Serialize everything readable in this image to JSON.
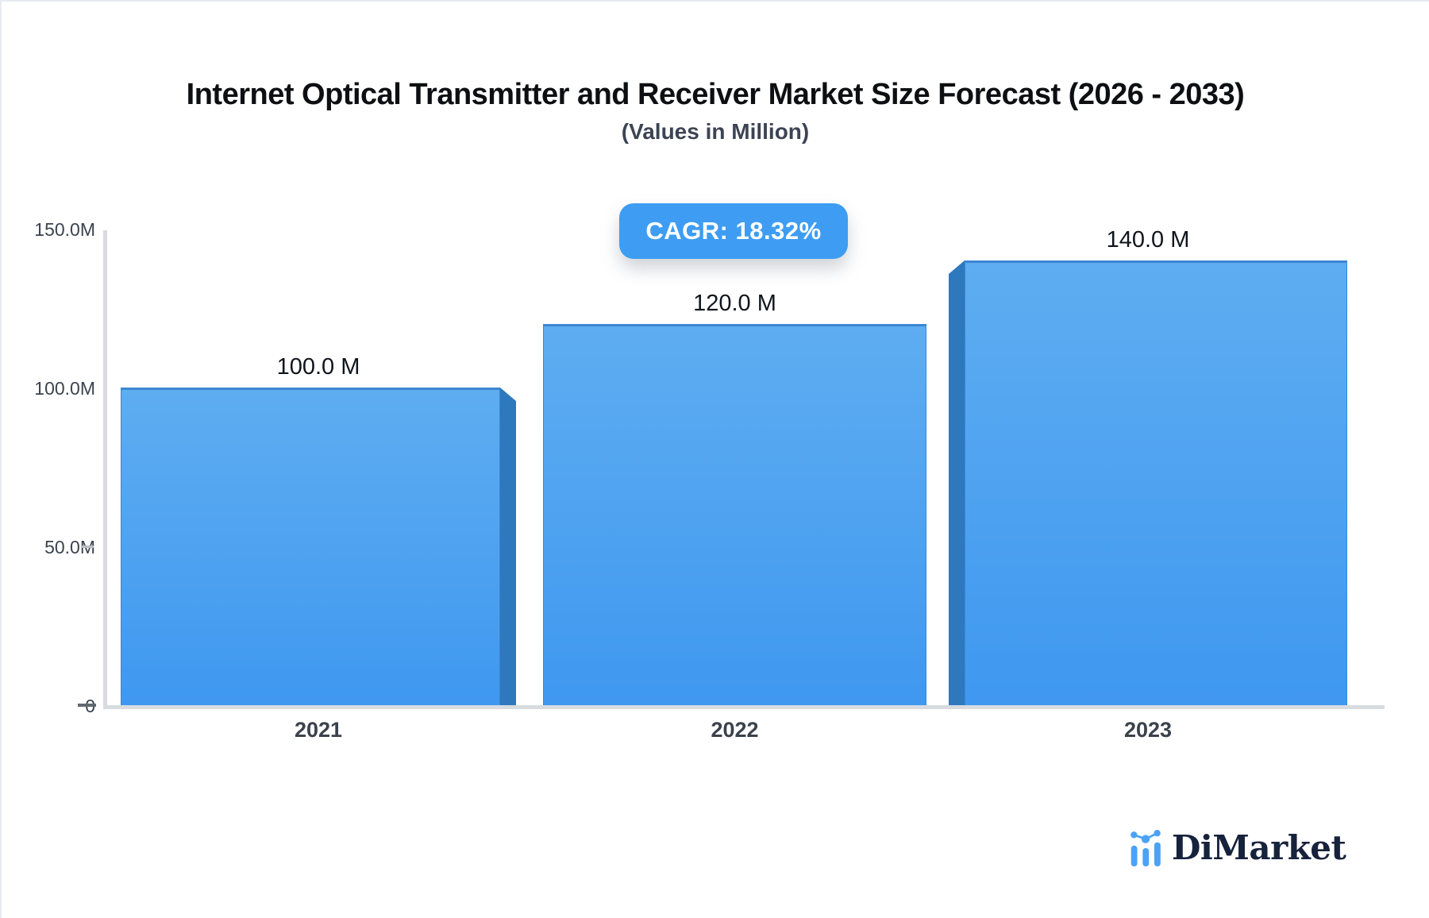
{
  "header": {
    "title": "Internet Optical Transmitter and Receiver Market Size Forecast (2026 - 2033)",
    "subtitle": "(Values in Million)"
  },
  "badge": {
    "label": "CAGR: 18.32%",
    "color": "#3e9df3"
  },
  "chart_data": {
    "type": "bar",
    "title": "Internet Optical Transmitter and Receiver Market Size Forecast (2026 - 2033)",
    "subtitle": "(Values in Million)",
    "categories": [
      "2021",
      "2022",
      "2023"
    ],
    "values": [
      100,
      120,
      140
    ],
    "value_labels": [
      "100.0 M",
      "120.0 M",
      "140.0 M"
    ],
    "unit": "Million",
    "xlabel": "",
    "ylabel": "",
    "ylim": [
      0,
      150
    ],
    "yticks": [
      {
        "value": 0,
        "label": "0"
      },
      {
        "value": 50,
        "label": "50.0M"
      },
      {
        "value": 100,
        "label": "100.0M"
      },
      {
        "value": 150,
        "label": "150.0M"
      }
    ],
    "grid": false,
    "legend": false,
    "bar_color_top": "#5eadf1",
    "bar_color_bottom": "#3f98f0",
    "bar_border_color": "#3c86d3",
    "bar_3d_edge_color": "#2e78be",
    "axis_color": "#d8dbe0",
    "cagr": "18.32%"
  },
  "logo": {
    "text": "DiMarket",
    "icon": "bar-chart-logo-icon",
    "icon_color": "#4ba2f7",
    "text_color": "#17223c"
  }
}
